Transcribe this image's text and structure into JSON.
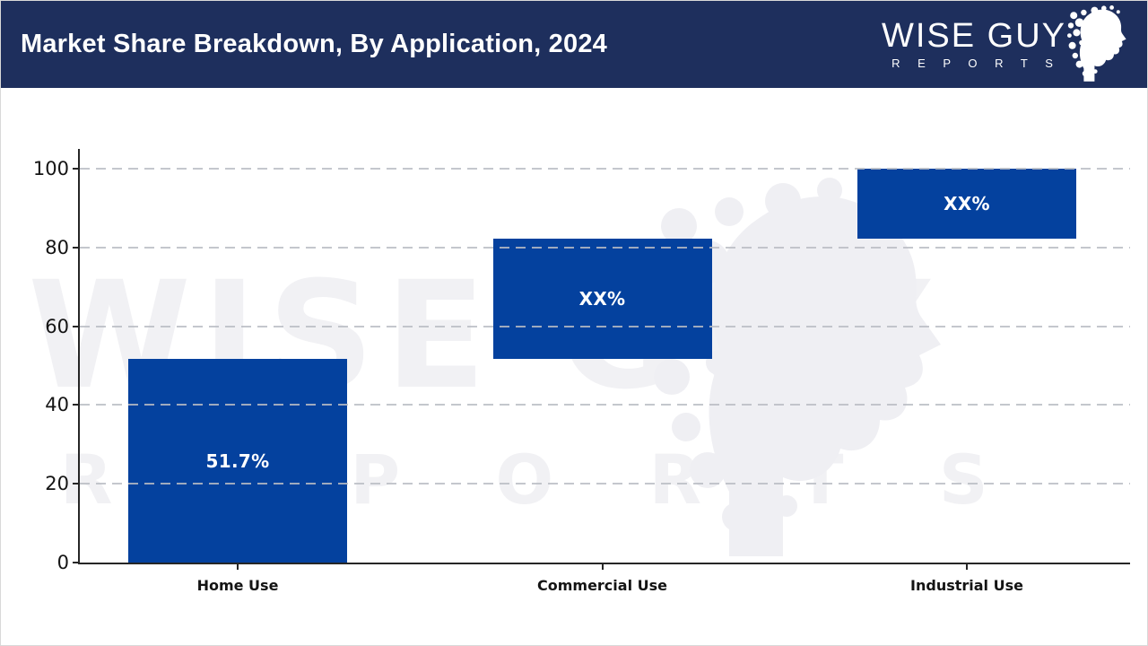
{
  "header": {
    "title": "Market Share Breakdown, By Application, 2024",
    "bg_color": "#1e2f5d",
    "logo": {
      "line1": "WISE GUY",
      "line2": "R E P O R T S"
    }
  },
  "watermark": {
    "line1": "WISE GUY",
    "line2": "R E P O R T S",
    "color": "#f0f0f4"
  },
  "chart_data": {
    "type": "bar",
    "subtype": "floating-segment-breakdown",
    "title": "Market Share Breakdown, By Application, 2024",
    "categories": [
      "Home Use",
      "Commercial Use",
      "Industrial Use"
    ],
    "segments": [
      {
        "category": "Home Use",
        "start": 0,
        "end": 51.7,
        "label": "51.7%"
      },
      {
        "category": "Commercial Use",
        "start": 51.7,
        "end": 82.2,
        "label": "XX%"
      },
      {
        "category": "Industrial Use",
        "start": 82.2,
        "end": 100,
        "label": "XX%"
      }
    ],
    "yticks": [
      0,
      20,
      40,
      60,
      80,
      100
    ],
    "ylim": [
      0,
      105
    ],
    "xlabel": "",
    "ylabel": "",
    "grid": "dashed-horizontal",
    "legend": "none",
    "bar_color": "#04419e",
    "bar_label_color": "#ffffff",
    "axis_color": "#262626",
    "tick_label_color": "#141414"
  }
}
